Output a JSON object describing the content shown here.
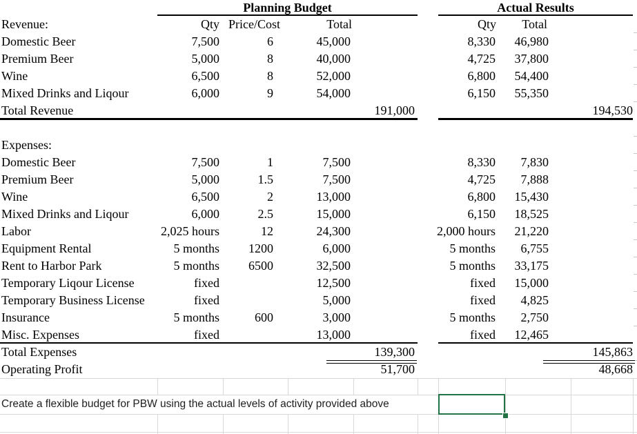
{
  "titles": {
    "planning": "Planning Budget",
    "actual": "Actual Results"
  },
  "headers": {
    "revenue_label": "Revenue:",
    "qty": "Qty",
    "price_cost": "Price/Cost",
    "total": "Total",
    "actual_qty": "Qty",
    "actual_total": "Total"
  },
  "revenue": {
    "rows": [
      {
        "label": "Domestic Beer",
        "qty": "7,500",
        "price": "6",
        "total": "45,000",
        "a_qty": "8,330",
        "a_total": "46,980"
      },
      {
        "label": "Premium Beer",
        "qty": "5,000",
        "price": "8",
        "total": "40,000",
        "a_qty": "4,725",
        "a_total": "37,800"
      },
      {
        "label": "Wine",
        "qty": "6,500",
        "price": "8",
        "total": "52,000",
        "a_qty": "6,800",
        "a_total": "54,400"
      },
      {
        "label": "Mixed Drinks and Liqour",
        "qty": "6,000",
        "price": "9",
        "total": "54,000",
        "a_qty": "6,150",
        "a_total": "55,350"
      }
    ],
    "total_label": "Total Revenue",
    "total_planning": "191,000",
    "total_actual": "194,530"
  },
  "expenses": {
    "section_label": "Expenses:",
    "rows": [
      {
        "label": "Domestic Beer",
        "qty": "7,500",
        "price": "1",
        "total": "7,500",
        "a_qty": "8,330",
        "a_total": "7,830"
      },
      {
        "label": "Premium Beer",
        "qty": "5,000",
        "price": "1.5",
        "total": "7,500",
        "a_qty": "4,725",
        "a_total": "7,888"
      },
      {
        "label": "Wine",
        "qty": "6,500",
        "price": "2",
        "total": "13,000",
        "a_qty": "6,800",
        "a_total": "15,430"
      },
      {
        "label": "Mixed Drinks and Liqour",
        "qty": "6,000",
        "price": "2.5",
        "total": "15,000",
        "a_qty": "6,150",
        "a_total": "18,525"
      },
      {
        "label": "Labor",
        "qty": "2,025 hours",
        "price": "12",
        "total": "24,300",
        "a_qty": "2,000 hours",
        "a_total": "21,220"
      },
      {
        "label": "Equipment Rental",
        "qty": "5 months",
        "price": "1200",
        "total": "6,000",
        "a_qty": "5 months",
        "a_total": "6,755"
      },
      {
        "label": "Rent to Harbor Park",
        "qty": "5 months",
        "price": "6500",
        "total": "32,500",
        "a_qty": "5 months",
        "a_total": "33,175"
      },
      {
        "label": "Temporary Liqour License",
        "qty": "fixed",
        "price": "",
        "total": "12,500",
        "a_qty": "fixed",
        "a_total": "15,000"
      },
      {
        "label": "Temporary Business License",
        "qty": "fixed",
        "price": "",
        "total": "5,000",
        "a_qty": "fixed",
        "a_total": "4,825"
      },
      {
        "label": "Insurance",
        "qty": "5 months",
        "price": "600",
        "total": "3,000",
        "a_qty": "5 months",
        "a_total": "2,750"
      },
      {
        "label": "Misc. Expenses",
        "qty": "fixed",
        "price": "",
        "total": "13,000",
        "a_qty": "fixed",
        "a_total": "12,465"
      }
    ],
    "total_label": "Total Expenses",
    "total_planning": "139,300",
    "total_actual": "145,863"
  },
  "profit": {
    "label": "Operating Profit",
    "planning": "51,700",
    "actual": "48,668"
  },
  "instruction": "Create a flexible budget for PBW using the actual levels of activity provided above",
  "colors": {
    "selection_green": "#217346",
    "gridline": "#d8d8d8"
  }
}
